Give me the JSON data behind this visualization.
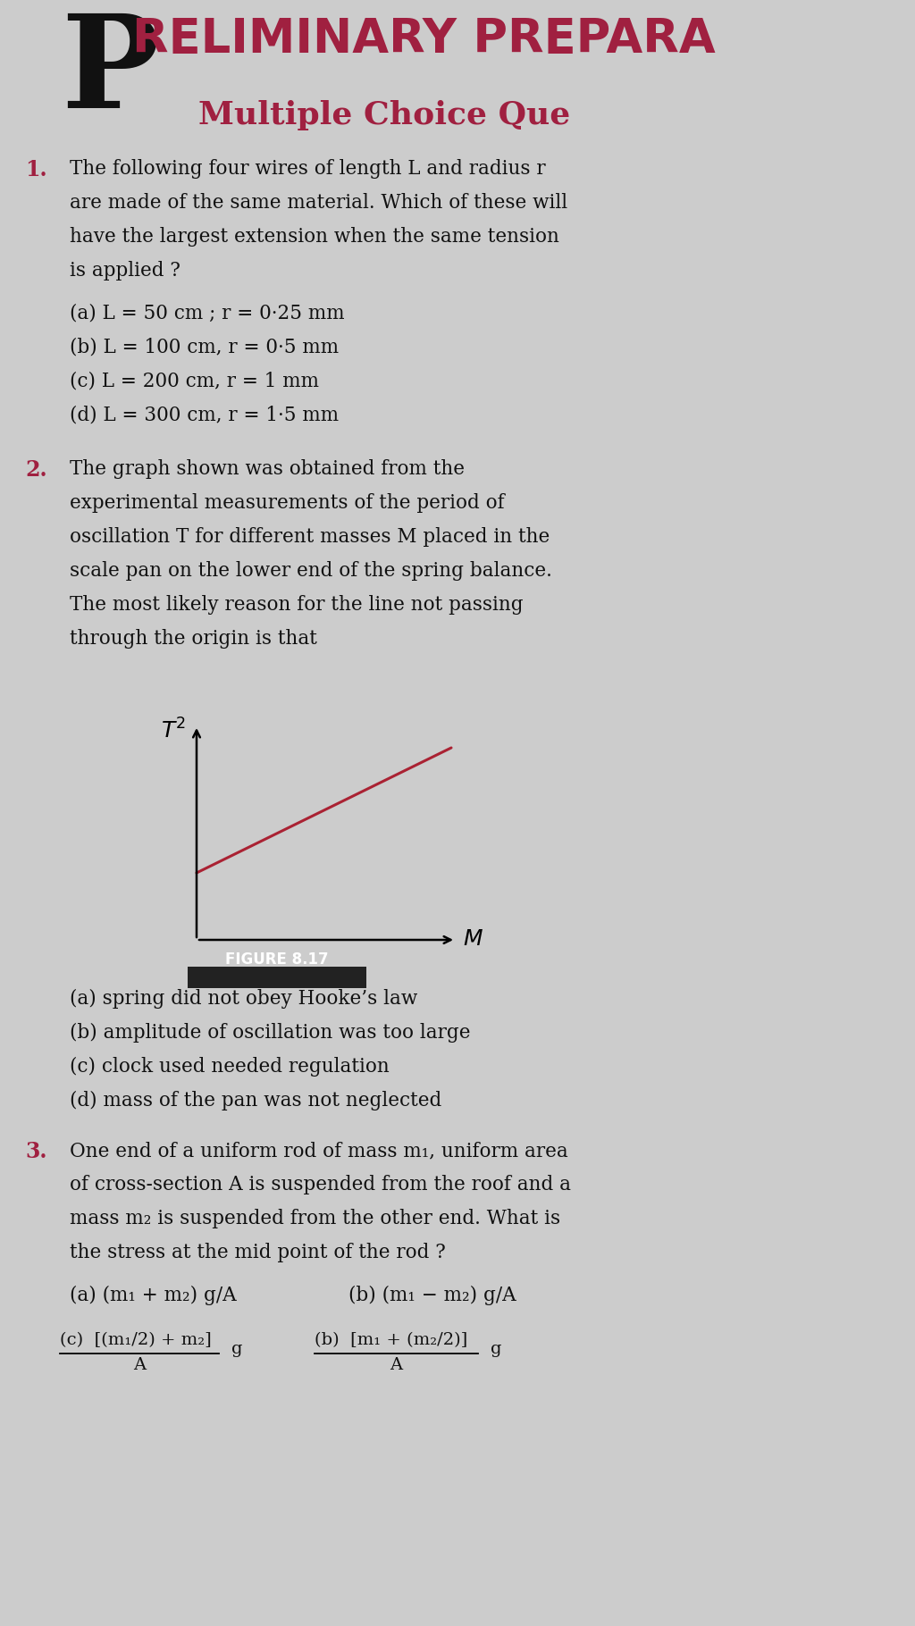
{
  "bg_color": "#cccccc",
  "title_P_color": "#111111",
  "title_rest_color": "#a02040",
  "number_color": "#a02040",
  "text_color": "#111111",
  "header_P": "P",
  "header_rest": "RELIMINARY PREPARA",
  "subtitle": "Multiple Choice Que",
  "q1_number": "1.",
  "q1_text_lines": [
    "The following four wires of length L and radius r",
    "are made of the same material. Which of these will",
    "have the largest extension when the same tension",
    "is applied ?"
  ],
  "q1_options": [
    "(a) L = 50 cm ; r = 0·25 mm",
    "(b) L = 100 cm, r = 0·5 mm",
    "(c) L = 200 cm, r = 1 mm",
    "(d) L = 300 cm, r = 1·5 mm"
  ],
  "q2_number": "2.",
  "q2_text_lines": [
    "The graph shown was obtained from the",
    "experimental measurements of the period of",
    "oscillation T for different masses M placed in the",
    "scale pan on the lower end of the spring balance.",
    "The most likely reason for the line not passing",
    "through the origin is that"
  ],
  "fig_label": "FIGURE 8.17",
  "q2_options": [
    "(a) spring did not obey Hooke’s law",
    "(b) amplitude of oscillation was too large",
    "(c) clock used needed regulation",
    "(d) mass of the pan was not neglected"
  ],
  "q3_number": "3.",
  "q3_text_lines": [
    "One end of a uniform rod of mass m₁, uniform area",
    "of cross-section A is suspended from the roof and a",
    "mass m₂ is suspended from the other end. What is",
    "the stress at the mid point of the rod ?"
  ],
  "q3_opt_a": "(a) (m₁ + m₂) g/A",
  "q3_opt_b": "(b) (m₁ − m₂) g/A",
  "q3_opt_c_top": "(c)  [(m₁/2) + m₂]",
  "q3_opt_c_bot": "A",
  "q3_opt_c_g": "g",
  "q3_opt_d_top": "(b)  [m₁ + (m₂/2)]",
  "q3_opt_d_bot": "A",
  "q3_opt_d_g": "g"
}
